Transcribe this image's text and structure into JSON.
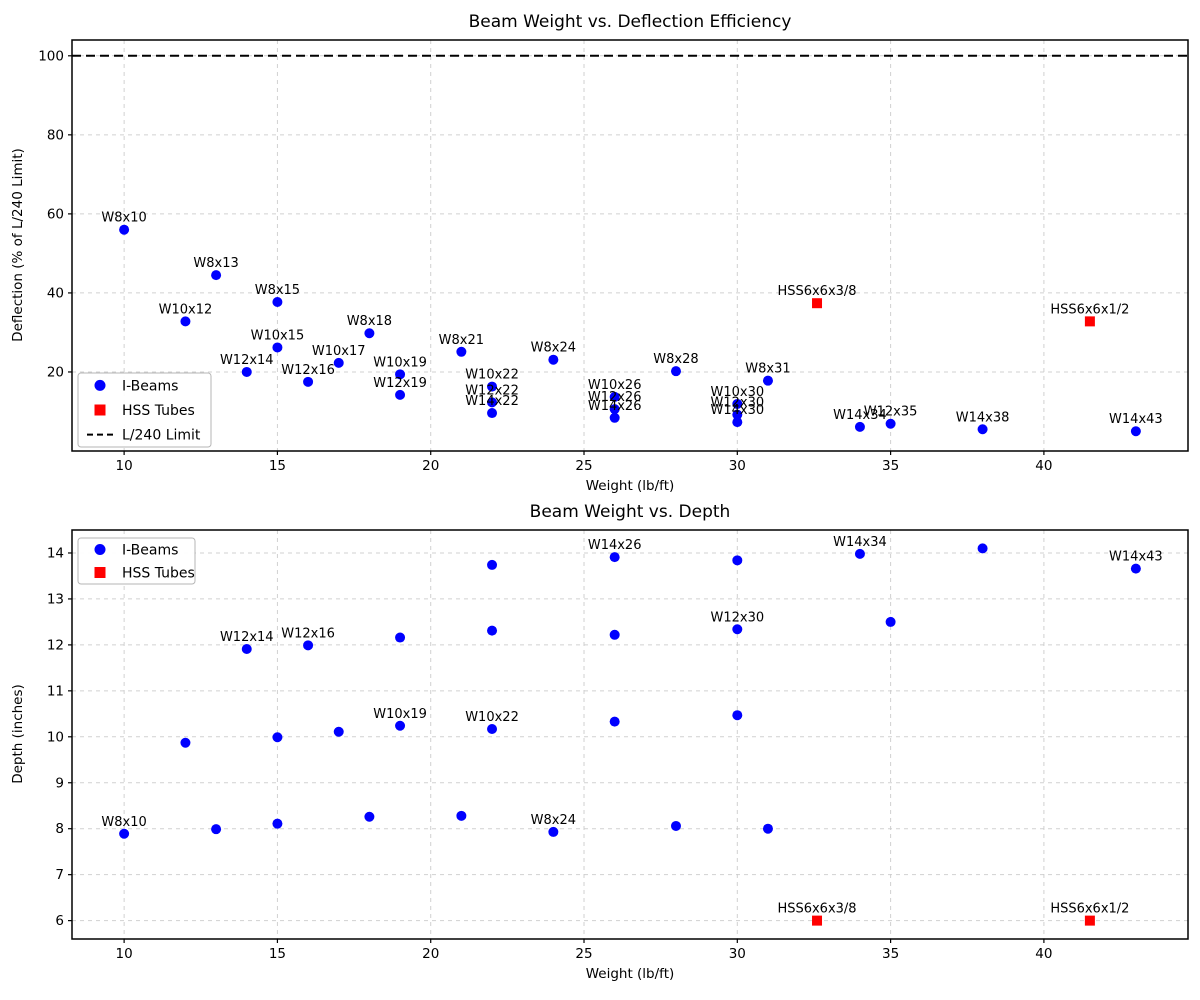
{
  "figure": {
    "background": "#ffffff",
    "text_color": "#000000",
    "grid_color": "#cccccc"
  },
  "chart_data": [
    {
      "type": "scatter",
      "title": "Beam Weight vs. Deflection Efficiency",
      "xlabel": "Weight (lb/ft)",
      "ylabel": "Deflection (% of L/240 Limit)",
      "xlim": [
        8.3,
        44.7
      ],
      "ylim": [
        0,
        104
      ],
      "xticks": [
        10,
        15,
        20,
        25,
        30,
        35,
        40
      ],
      "yticks": [
        20,
        40,
        60,
        80,
        100
      ],
      "grid": true,
      "legend": {
        "position": "lower-left",
        "entries": [
          {
            "label": "I-Beams",
            "marker": "circle",
            "color": "#0000ff"
          },
          {
            "label": "HSS Tubes",
            "marker": "square",
            "color": "#ff0000"
          },
          {
            "label": "L/240 Limit",
            "marker": "dashed-line",
            "color": "#000000"
          }
        ]
      },
      "ref_line": {
        "y": 100,
        "style": "dashed",
        "color": "#000000",
        "label": "L/240 Limit"
      },
      "series": [
        {
          "name": "I-Beams",
          "marker": "circle",
          "color": "#0000ff",
          "points": [
            {
              "label": "W8x10",
              "x": 10,
              "y": 56.0,
              "labeled": true
            },
            {
              "label": "W10x12",
              "x": 12,
              "y": 32.8,
              "labeled": true
            },
            {
              "label": "W8x13",
              "x": 13,
              "y": 44.5,
              "labeled": true
            },
            {
              "label": "W12x14",
              "x": 14,
              "y": 20.0,
              "labeled": true
            },
            {
              "label": "W8x15",
              "x": 15,
              "y": 37.7,
              "labeled": true
            },
            {
              "label": "W10x15",
              "x": 15,
              "y": 26.2,
              "labeled": true
            },
            {
              "label": "W12x16",
              "x": 16,
              "y": 17.5,
              "labeled": true
            },
            {
              "label": "W10x17",
              "x": 17,
              "y": 22.3,
              "labeled": true
            },
            {
              "label": "W8x18",
              "x": 18,
              "y": 29.8,
              "labeled": true
            },
            {
              "label": "W10x19",
              "x": 19,
              "y": 19.4,
              "labeled": true
            },
            {
              "label": "W12x19",
              "x": 19,
              "y": 14.2,
              "labeled": true
            },
            {
              "label": "W8x21",
              "x": 21,
              "y": 25.1,
              "labeled": true
            },
            {
              "label": "W10x22",
              "x": 22,
              "y": 16.3,
              "labeled": true
            },
            {
              "label": "W12x22",
              "x": 22,
              "y": 12.3,
              "labeled": true
            },
            {
              "label": "W14x22",
              "x": 22,
              "y": 9.6,
              "labeled": true
            },
            {
              "label": "W8x24",
              "x": 24,
              "y": 23.1,
              "labeled": true
            },
            {
              "label": "W10x26",
              "x": 26,
              "y": 13.7,
              "labeled": true
            },
            {
              "label": "W12x26",
              "x": 26,
              "y": 10.6,
              "labeled": true
            },
            {
              "label": "W14x26",
              "x": 26,
              "y": 8.4,
              "labeled": true
            },
            {
              "label": "W8x28",
              "x": 28,
              "y": 20.2,
              "labeled": true
            },
            {
              "label": "W10x30",
              "x": 30,
              "y": 11.9,
              "labeled": true
            },
            {
              "label": "W12x30",
              "x": 30,
              "y": 9.2,
              "labeled": true
            },
            {
              "label": "W14x30",
              "x": 30,
              "y": 7.3,
              "labeled": true
            },
            {
              "label": "W8x31",
              "x": 31,
              "y": 17.8,
              "labeled": true
            },
            {
              "label": "W14x34",
              "x": 34,
              "y": 6.1,
              "labeled": true
            },
            {
              "label": "W12x35",
              "x": 35,
              "y": 6.9,
              "labeled": true
            },
            {
              "label": "W14x38",
              "x": 38,
              "y": 5.5,
              "labeled": true
            },
            {
              "label": "W14x43",
              "x": 43,
              "y": 5.0,
              "labeled": true
            }
          ]
        },
        {
          "name": "HSS Tubes",
          "marker": "square",
          "color": "#ff0000",
          "points": [
            {
              "label": "HSS6x6x3/8",
              "x": 32.6,
              "y": 37.4,
              "labeled": true
            },
            {
              "label": "HSS6x6x1/2",
              "x": 41.5,
              "y": 32.8,
              "labeled": true
            }
          ]
        }
      ]
    },
    {
      "type": "scatter",
      "title": "Beam Weight vs. Depth",
      "xlabel": "Weight (lb/ft)",
      "ylabel": "Depth (inches)",
      "xlim": [
        8.3,
        44.7
      ],
      "ylim": [
        5.6,
        14.5
      ],
      "xticks": [
        10,
        15,
        20,
        25,
        30,
        35,
        40
      ],
      "yticks": [
        6,
        7,
        8,
        9,
        10,
        11,
        12,
        13,
        14
      ],
      "grid": true,
      "legend": {
        "position": "upper-left",
        "entries": [
          {
            "label": "I-Beams",
            "marker": "circle",
            "color": "#0000ff"
          },
          {
            "label": "HSS Tubes",
            "marker": "square",
            "color": "#ff0000"
          }
        ]
      },
      "series": [
        {
          "name": "I-Beams",
          "marker": "circle",
          "color": "#0000ff",
          "points": [
            {
              "label": "W8x10",
              "x": 10,
              "y": 7.89,
              "labeled": true
            },
            {
              "label": "W10x12",
              "x": 12,
              "y": 9.87,
              "labeled": false
            },
            {
              "label": "W8x13",
              "x": 13,
              "y": 7.99,
              "labeled": false
            },
            {
              "label": "W12x14",
              "x": 14,
              "y": 11.91,
              "labeled": true
            },
            {
              "label": "W8x15",
              "x": 15,
              "y": 8.11,
              "labeled": false
            },
            {
              "label": "W10x15",
              "x": 15,
              "y": 9.99,
              "labeled": false
            },
            {
              "label": "W12x16",
              "x": 16,
              "y": 11.99,
              "labeled": true
            },
            {
              "label": "W10x17",
              "x": 17,
              "y": 10.11,
              "labeled": false
            },
            {
              "label": "W8x18",
              "x": 18,
              "y": 8.26,
              "labeled": false
            },
            {
              "label": "W10x19",
              "x": 19,
              "y": 10.24,
              "labeled": true
            },
            {
              "label": "W12x19",
              "x": 19,
              "y": 12.16,
              "labeled": false
            },
            {
              "label": "W8x21",
              "x": 21,
              "y": 8.28,
              "labeled": false
            },
            {
              "label": "W10x22",
              "x": 22,
              "y": 10.17,
              "labeled": true
            },
            {
              "label": "W12x22",
              "x": 22,
              "y": 12.31,
              "labeled": false
            },
            {
              "label": "W14x22",
              "x": 22,
              "y": 13.74,
              "labeled": false
            },
            {
              "label": "W8x24",
              "x": 24,
              "y": 7.93,
              "labeled": true
            },
            {
              "label": "W10x26",
              "x": 26,
              "y": 10.33,
              "labeled": false
            },
            {
              "label": "W12x26",
              "x": 26,
              "y": 12.22,
              "labeled": false
            },
            {
              "label": "W14x26",
              "x": 26,
              "y": 13.91,
              "labeled": true
            },
            {
              "label": "W8x28",
              "x": 28,
              "y": 8.06,
              "labeled": false
            },
            {
              "label": "W10x30",
              "x": 30,
              "y": 10.47,
              "labeled": false
            },
            {
              "label": "W12x30",
              "x": 30,
              "y": 12.34,
              "labeled": true
            },
            {
              "label": "W14x30",
              "x": 30,
              "y": 13.84,
              "labeled": false
            },
            {
              "label": "W8x31",
              "x": 31,
              "y": 8.0,
              "labeled": false
            },
            {
              "label": "W14x34",
              "x": 34,
              "y": 13.98,
              "labeled": true
            },
            {
              "label": "W12x35",
              "x": 35,
              "y": 12.5,
              "labeled": false
            },
            {
              "label": "W14x38",
              "x": 38,
              "y": 14.1,
              "labeled": false
            },
            {
              "label": "W14x43",
              "x": 43,
              "y": 13.66,
              "labeled": true
            }
          ]
        },
        {
          "name": "HSS Tubes",
          "marker": "square",
          "color": "#ff0000",
          "points": [
            {
              "label": "HSS6x6x3/8",
              "x": 32.6,
              "y": 6.0,
              "labeled": true
            },
            {
              "label": "HSS6x6x1/2",
              "x": 41.5,
              "y": 6.0,
              "labeled": true
            }
          ]
        }
      ]
    }
  ]
}
